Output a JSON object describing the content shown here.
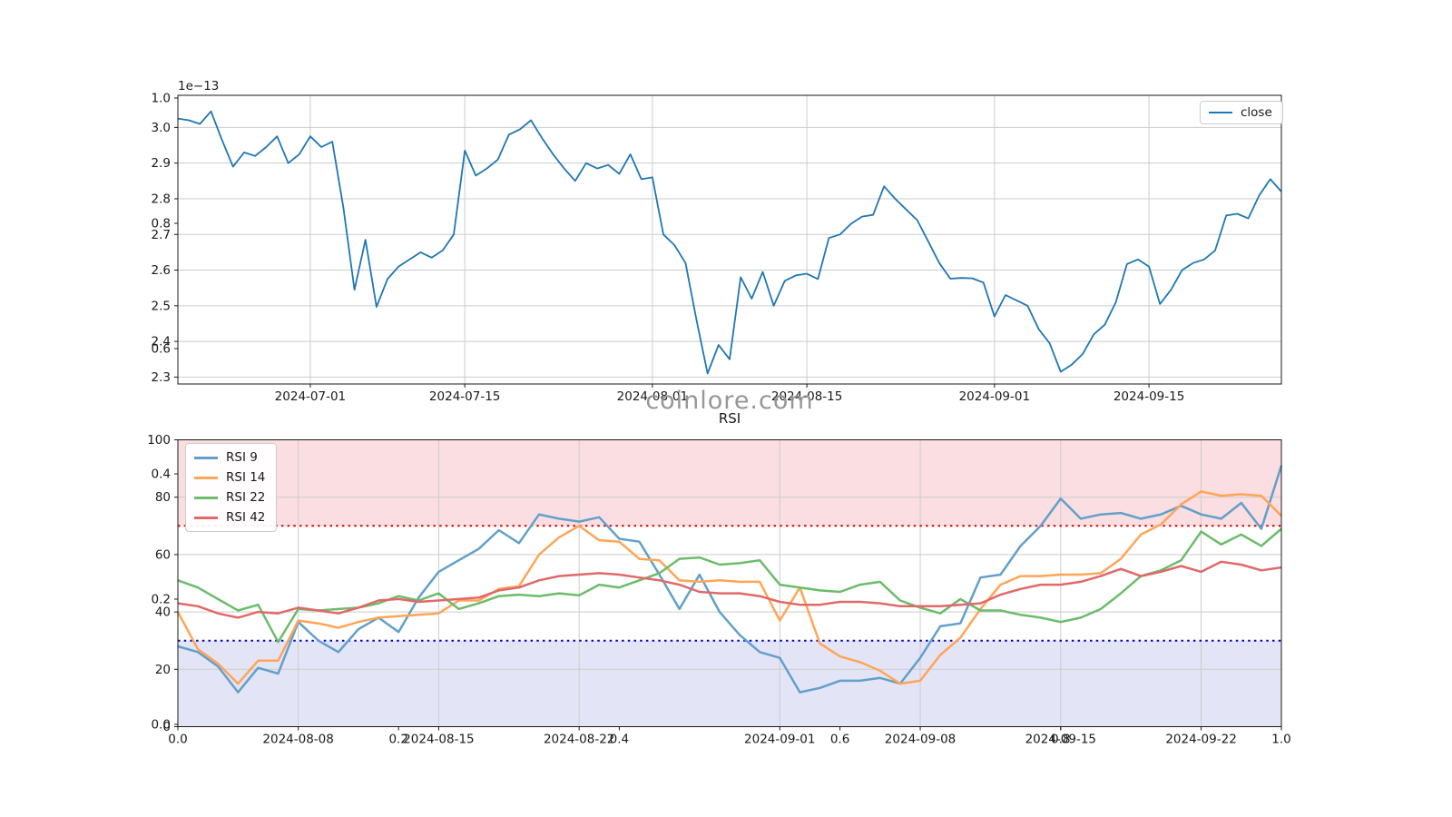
{
  "watermark": "coinlore.com",
  "overlay_axis": {
    "yticks": [
      "1.0",
      "0.8",
      "0.6",
      "0.4",
      "0.2",
      "0.0"
    ],
    "xticks": [
      "0.0",
      "0.2",
      "0.4",
      "0.6",
      "0.8",
      "1.0"
    ]
  },
  "style_colors": {
    "grid": "#cccccc",
    "spine": "#1a1a1a",
    "tick_text": "#1a1a1a",
    "watermark": "#979797",
    "overbought_band": "#fadee1",
    "oversold_band": "#e4e4f7",
    "overbought_line": "#e00000",
    "oversold_line": "#0000cc"
  },
  "chart_data": [
    {
      "type": "line",
      "title": "",
      "y_offset_label": "1e−13",
      "x_start_date": "2024-06-19",
      "x_end_date": "2024-09-27",
      "x_freq": "daily",
      "grid": true,
      "legend_position": "upper right",
      "ylim": [
        2.277,
        3.089
      ],
      "yticks": [
        2.3,
        2.4,
        2.5,
        2.6,
        2.7,
        2.8,
        2.9,
        3.0
      ],
      "xticks": [
        {
          "index": 12,
          "label": "2024-07-01"
        },
        {
          "index": 26,
          "label": "2024-07-15"
        },
        {
          "index": 43,
          "label": "2024-08-01"
        },
        {
          "index": 57,
          "label": "2024-08-15"
        },
        {
          "index": 74,
          "label": "2024-09-01"
        },
        {
          "index": 88,
          "label": "2024-09-15"
        }
      ],
      "series": [
        {
          "name": "close",
          "color": "#1f77b4",
          "unit_scale": "1e-13",
          "values": [
            3.025,
            3.02,
            3.01,
            3.045,
            2.965,
            2.89,
            2.93,
            2.92,
            2.945,
            2.975,
            2.9,
            2.925,
            2.975,
            2.945,
            2.96,
            2.775,
            2.545,
            2.685,
            2.497,
            2.575,
            2.61,
            2.63,
            2.65,
            2.635,
            2.655,
            2.7,
            2.935,
            2.865,
            2.885,
            2.91,
            2.98,
            2.995,
            3.02,
            2.97,
            2.925,
            2.885,
            2.85,
            2.9,
            2.885,
            2.895,
            2.87,
            2.925,
            2.855,
            2.86,
            2.7,
            2.67,
            2.62,
            2.46,
            2.31,
            2.39,
            2.35,
            2.58,
            2.52,
            2.595,
            2.5,
            2.57,
            2.585,
            2.59,
            2.575,
            2.69,
            2.7,
            2.73,
            2.75,
            2.755,
            2.835,
            2.8,
            2.77,
            2.74,
            2.68,
            2.62,
            2.576,
            2.578,
            2.577,
            2.565,
            2.47,
            2.53,
            2.515,
            2.5,
            2.435,
            2.395,
            2.315,
            2.335,
            2.365,
            2.42,
            2.447,
            2.51,
            2.617,
            2.63,
            2.61,
            2.505,
            2.545,
            2.6,
            2.62,
            2.63,
            2.655,
            2.753,
            2.758,
            2.745,
            2.81,
            2.855,
            2.82
          ]
        }
      ]
    },
    {
      "type": "line",
      "title": "RSI",
      "x_start_date": "2024-08-02",
      "x_end_date": "2024-09-26",
      "x_freq": "daily",
      "grid": true,
      "legend_position": "upper left",
      "ylim": [
        0,
        100
      ],
      "yticks": [
        0,
        20,
        40,
        60,
        80,
        100
      ],
      "hlines": [
        {
          "y": 70,
          "color": "#e00000",
          "style": "dotted",
          "meaning": "overbought"
        },
        {
          "y": 30,
          "color": "#0000cc",
          "style": "dotted",
          "meaning": "oversold"
        }
      ],
      "bands": [
        {
          "from": 70,
          "to": 100,
          "color": "#fadee1"
        },
        {
          "from": 0,
          "to": 30,
          "color": "#e4e4f7"
        }
      ],
      "xticks": [
        {
          "index": 6,
          "label": "2024-08-08"
        },
        {
          "index": 13,
          "label": "2024-08-15"
        },
        {
          "index": 20,
          "label": "2024-08-22"
        },
        {
          "index": 30,
          "label": "2024-09-01"
        },
        {
          "index": 37,
          "label": "2024-09-08"
        },
        {
          "index": 44,
          "label": "2024-09-15"
        },
        {
          "index": 51,
          "label": "2024-09-22"
        }
      ],
      "series": [
        {
          "name": "RSI 9",
          "color": "#62a0ca",
          "values": [
            28,
            26,
            21,
            12,
            20.5,
            18.5,
            36.5,
            30,
            26,
            34,
            38,
            33,
            45,
            54,
            58,
            62,
            68.5,
            64,
            74,
            72.5,
            71.5,
            73,
            65.5,
            64.5,
            53,
            41,
            53,
            40,
            32,
            26,
            24,
            12,
            13.5,
            16,
            16,
            17,
            15,
            24,
            35,
            36,
            52,
            53,
            63,
            70,
            79.5,
            72.5,
            74,
            74.5,
            72.5,
            74,
            77,
            74,
            72.5,
            78,
            69,
            91
          ]
        },
        {
          "name": "RSI 14",
          "color": "#ffa556",
          "values": [
            40,
            27,
            22,
            15,
            23,
            23,
            37,
            36,
            34.5,
            36.5,
            38,
            38.5,
            39,
            39.5,
            44,
            44,
            48,
            49,
            60,
            66,
            70,
            65,
            64.5,
            58.5,
            58,
            51,
            50.5,
            51,
            50.5,
            50.5,
            37,
            48.5,
            29,
            24.5,
            22.5,
            19.5,
            15,
            16,
            25,
            31,
            41,
            49.5,
            52.5,
            52.5,
            53,
            53,
            53.5,
            58.5,
            67,
            70.5,
            77.5,
            82,
            80.5,
            81,
            80.5,
            73.5
          ]
        },
        {
          "name": "RSI 22",
          "color": "#6bbc6b",
          "values": [
            51,
            48.5,
            44.5,
            40.5,
            42.5,
            29.5,
            41,
            40.5,
            41,
            41.5,
            43,
            45.5,
            44,
            46.5,
            41,
            43,
            45.5,
            46,
            45.5,
            46.5,
            45.8,
            49.5,
            48.5,
            51,
            53.5,
            58.5,
            59,
            56.5,
            57,
            58,
            49.5,
            48.5,
            47.5,
            47,
            49.5,
            50.5,
            44,
            41.5,
            39.5,
            44.5,
            40.5,
            40.5,
            39,
            38,
            36.5,
            38,
            41,
            46.5,
            52.5,
            54.5,
            58,
            68,
            63.5,
            67,
            63,
            69
          ]
        },
        {
          "name": "RSI 42",
          "color": "#e26869",
          "values": [
            43,
            42,
            39.5,
            38,
            40,
            39.5,
            41.5,
            40.5,
            39.5,
            41.5,
            44,
            44.5,
            43.5,
            44,
            44.5,
            45,
            47.5,
            48.5,
            51,
            52.5,
            53,
            53.5,
            53,
            52,
            51,
            49.5,
            47,
            46.5,
            46.5,
            45.5,
            43.5,
            42.5,
            42.5,
            43.5,
            43.5,
            43,
            42,
            42,
            42,
            42.5,
            43,
            46,
            48,
            49.5,
            49.5,
            50.5,
            52.5,
            55,
            52.5,
            54,
            56,
            54,
            57.5,
            56.5,
            54.5,
            55.5
          ]
        }
      ]
    }
  ]
}
